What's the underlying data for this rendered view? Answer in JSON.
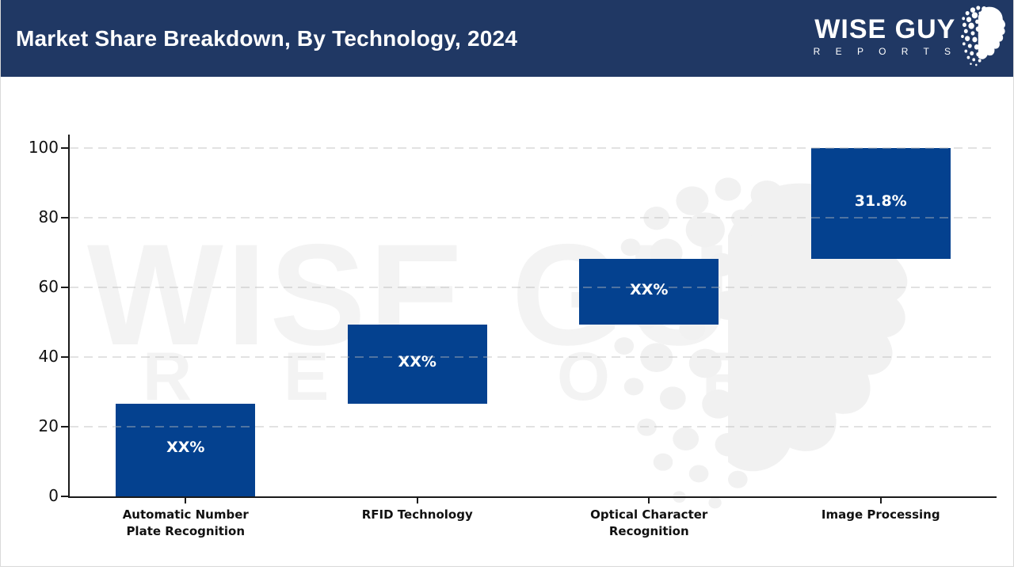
{
  "header": {
    "title": "Market Share Breakdown, By Technology, 2024",
    "logo": {
      "primary": "WISE GUY",
      "secondary": "R E P O R T S"
    }
  },
  "watermark": {
    "primary": "WISE GU",
    "secondary": "R E P O R"
  },
  "colors": {
    "header_bg": "#203864",
    "bar": "#04418f",
    "bar_label": "#ffffff",
    "axis": "#1a1a1a",
    "grid": "#dcdcdc",
    "watermark": "#f2f2f2"
  },
  "chart_data": {
    "type": "bar",
    "variant": "waterfall",
    "title": "Market Share Breakdown, By Technology, 2024",
    "xlabel": "",
    "ylabel": "",
    "ylim": [
      0,
      100
    ],
    "yticks": [
      0,
      20,
      40,
      60,
      80,
      100
    ],
    "grid": "dashed-horizontal",
    "legend": "none",
    "bar_color": "#04418f",
    "categories": [
      "Automatic Number Plate Recognition",
      "RFID Technology",
      "Optical Character Recognition",
      "Image Processing"
    ],
    "category_lines": [
      [
        "Automatic Number",
        "Plate Recognition"
      ],
      [
        "RFID Technology"
      ],
      [
        "Optical Character",
        "Recognition"
      ],
      [
        "Image Processing"
      ]
    ],
    "segments": [
      {
        "category": "Automatic Number Plate Recognition",
        "start": 0,
        "end": 26.6,
        "label": "XX%"
      },
      {
        "category": "RFID Technology",
        "start": 26.6,
        "end": 49.3,
        "label": "XX%"
      },
      {
        "category": "Optical Character Recognition",
        "start": 49.3,
        "end": 68.2,
        "label": "XX%"
      },
      {
        "category": "Image Processing",
        "start": 68.2,
        "end": 100,
        "label": "31.8%",
        "value": 31.8
      }
    ]
  }
}
